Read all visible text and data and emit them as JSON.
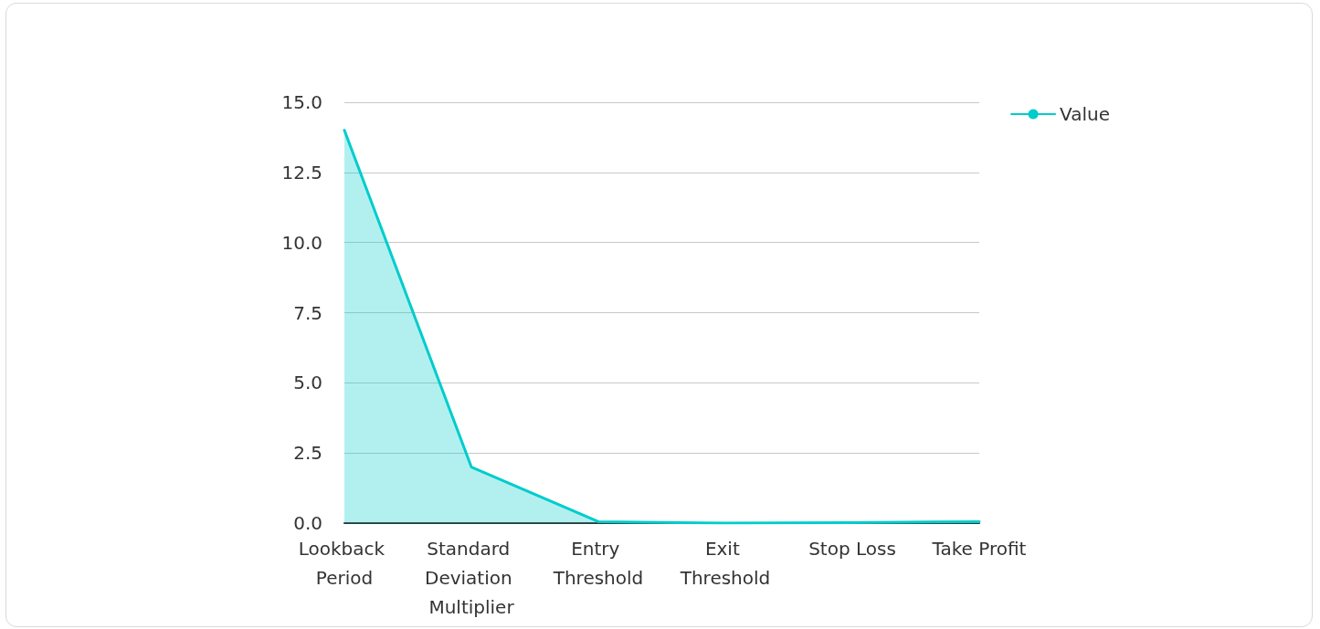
{
  "chart_data": {
    "type": "area",
    "categories": [
      "Lookback Period",
      "Standard Deviation Multiplier",
      "Entry Threshold",
      "Exit Threshold",
      "Stop Loss",
      "Take Profit"
    ],
    "series": [
      {
        "name": "Value",
        "color": "#00cccc",
        "values": [
          14,
          2,
          0.05,
          0,
          0.02,
          0.05
        ]
      }
    ],
    "ylim": [
      0,
      15
    ],
    "yticks": [
      {
        "value": 0,
        "label": "0.0"
      },
      {
        "value": 2.5,
        "label": "2.5"
      },
      {
        "value": 5,
        "label": "5.0"
      },
      {
        "value": 7.5,
        "label": "7.5"
      },
      {
        "value": 10,
        "label": "10.0"
      },
      {
        "value": 12.5,
        "label": "12.5"
      },
      {
        "value": 15,
        "label": "15.0"
      }
    ],
    "grid": "y",
    "legend": "top right",
    "marker": "none"
  }
}
